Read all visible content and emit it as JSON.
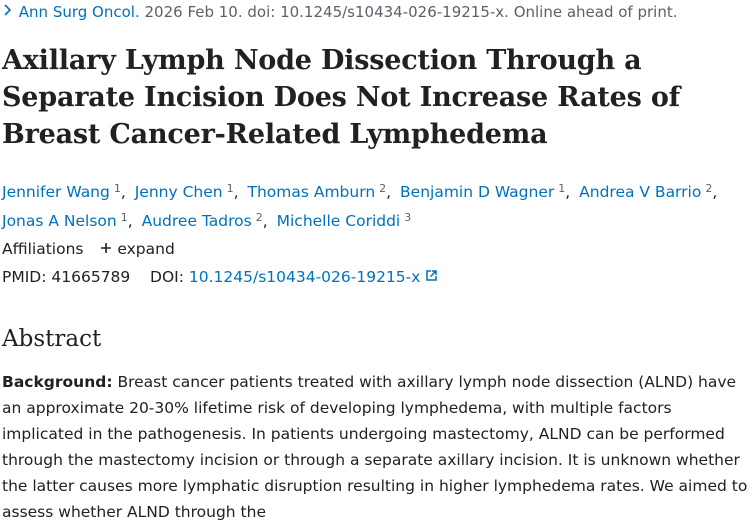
{
  "citation": {
    "journal": "Ann Surg Oncol.",
    "details": "2026 Feb 10. doi: 10.1245/s10434-026-19215-x. Online ahead of print."
  },
  "title": "Axillary Lymph Node Dissection Through a Separate Incision Does Not Increase Rates of Breast Cancer-Related Lymphedema",
  "authors": {
    "delimiter": ",",
    "list": [
      {
        "name": "Jennifer Wang",
        "aff": "1"
      },
      {
        "name": "Jenny Chen",
        "aff": "1"
      },
      {
        "name": "Thomas Amburn",
        "aff": "2"
      },
      {
        "name": "Benjamin D Wagner",
        "aff": "1"
      },
      {
        "name": "Andrea V Barrio",
        "aff": "2"
      },
      {
        "name": "Jonas A Nelson",
        "aff": "1"
      },
      {
        "name": "Audree Tadros",
        "aff": "2"
      },
      {
        "name": "Michelle Coriddi",
        "aff": "3"
      }
    ]
  },
  "affiliations": {
    "label": "Affiliations",
    "toggle": "expand"
  },
  "identifiers": {
    "pmid_label": "PMID:",
    "pmid": "41665789",
    "doi_label": "DOI:",
    "doi": "10.1245/s10434-026-19215-x"
  },
  "abstract": {
    "heading": "Abstract",
    "background_label": "Background:",
    "background_text": "Breast cancer patients treated with axillary lymph node dissection (ALND) have an approximate 20-30% lifetime risk of developing lymphedema, with multiple factors implicated in the pathogenesis. In patients undergoing mastectomy, ALND can be performed through the mastectomy incision or through a separate axillary incision. It is unknown whether the latter causes more lymphatic disruption resulting in higher lymphedema rates. We aimed to assess whether ALND through the"
  }
}
